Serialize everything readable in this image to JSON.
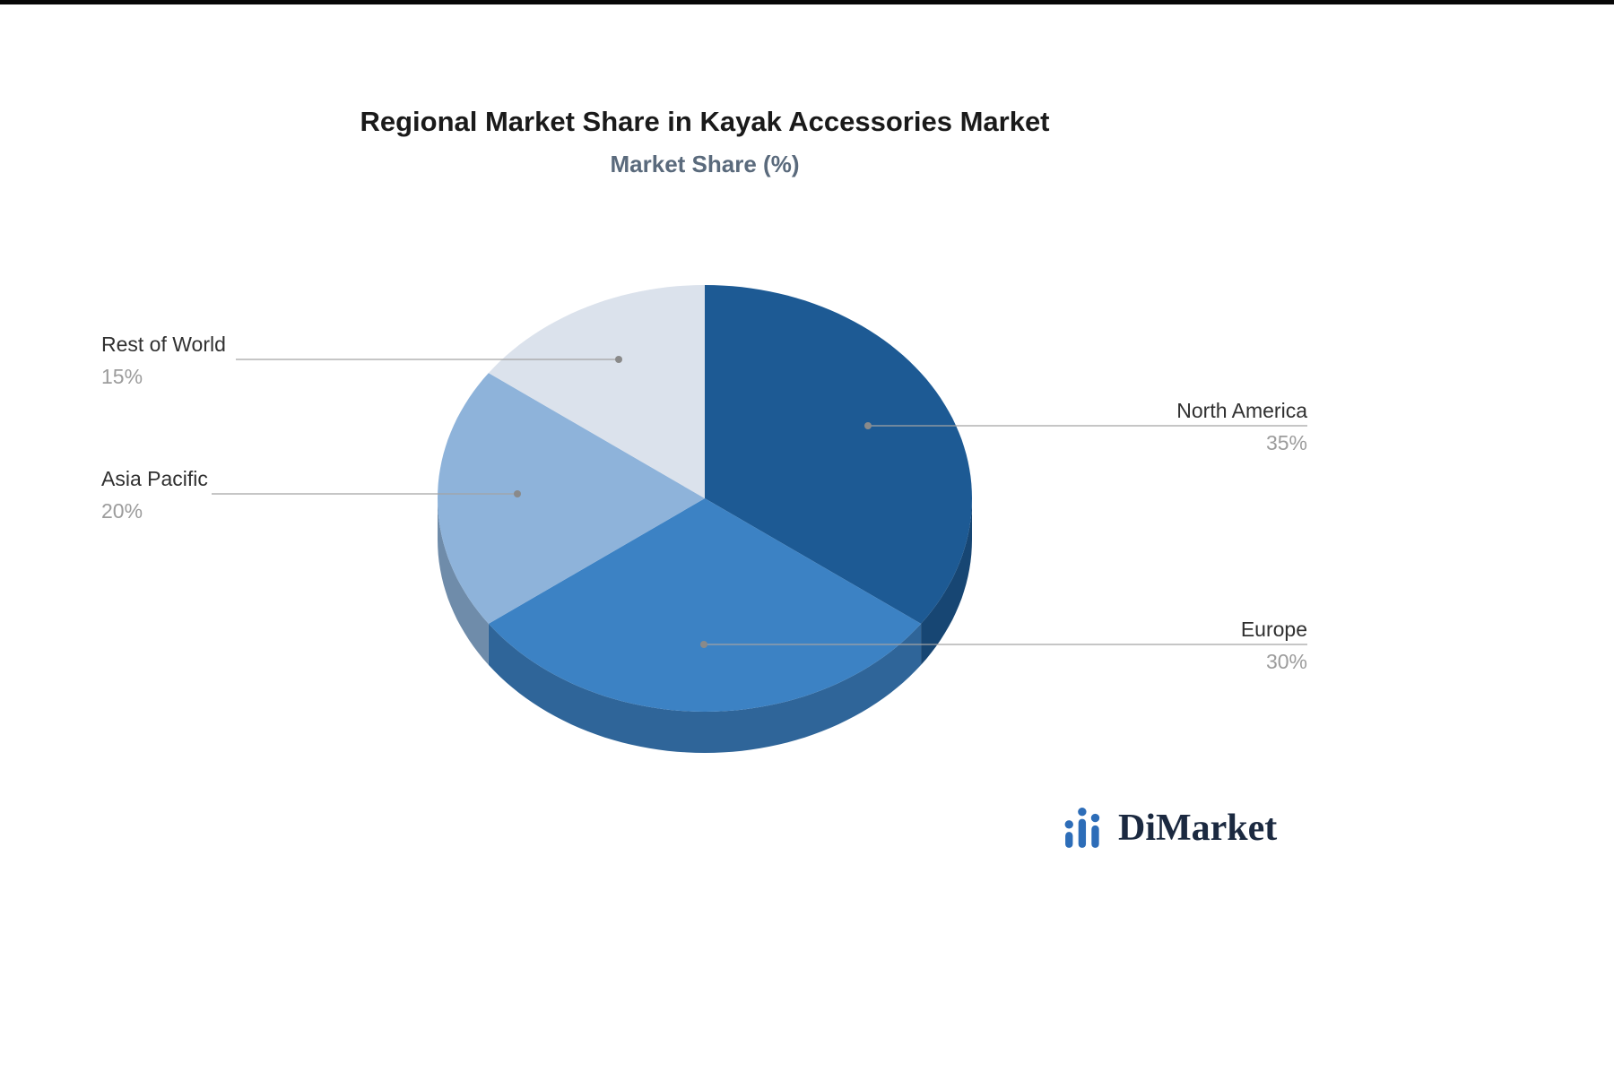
{
  "chart_data": {
    "type": "pie",
    "title": "Regional Market Share in Kayak Accessories Market",
    "subtitle": "Market Share (%)",
    "unit": "%",
    "effect": "3d",
    "direction": "clockwise",
    "start_angle_deg": 0,
    "legend_position": "none",
    "segments": [
      {
        "label": "North America",
        "value": 35,
        "value_label": "35%",
        "color": "#1d5a94"
      },
      {
        "label": "Europe",
        "value": 30,
        "value_label": "30%",
        "color": "#3c82c4"
      },
      {
        "label": "Asia Pacific",
        "value": 20,
        "value_label": "20%",
        "color": "#8eb3da"
      },
      {
        "label": "Rest of World",
        "value": 15,
        "value_label": "15%",
        "color": "#dbe2ec"
      }
    ],
    "callout_style": {
      "name_color": "#303030",
      "value_color": "#9c9c9c",
      "line_color": "#a3a3a3",
      "dot_color": "#8a8a8a"
    }
  },
  "brand": {
    "name": "DiMarket",
    "icon": "bar-chart-logo-icon",
    "icon_color": "#2d6db8",
    "text_color": "#1b2940"
  }
}
